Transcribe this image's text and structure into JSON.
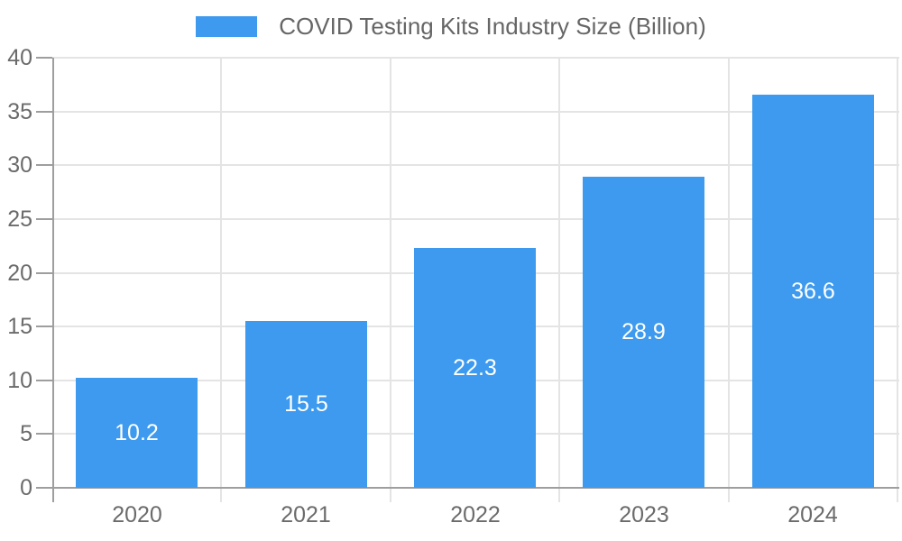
{
  "chart_data": {
    "type": "bar",
    "title": "COVID Testing Kits Industry Size (Billion)",
    "categories": [
      "2020",
      "2021",
      "2022",
      "2023",
      "2024"
    ],
    "series": [
      {
        "name": "COVID Testing Kits Industry Size (Billion)",
        "values": [
          10.2,
          15.5,
          22.3,
          28.9,
          36.6
        ]
      }
    ],
    "value_labels": [
      "10.2",
      "15.5",
      "22.3",
      "28.9",
      "36.6"
    ],
    "xlabel": "",
    "ylabel": "",
    "ylim": [
      0,
      40
    ],
    "y_ticks": [
      0,
      5,
      10,
      15,
      20,
      25,
      30,
      35,
      40
    ],
    "grid": "horizontal-and-vertical",
    "legend_position": "top-center",
    "value_label_position": "inside-center"
  },
  "legend": {
    "label": "COVID Testing Kits Industry Size (Billion)"
  },
  "colors": {
    "bar": "#3D9AEE",
    "axis": "#9E9E9E",
    "gridline": "#E4E4E4",
    "tick": "#B9B9B9",
    "axis_label_text": "#6B6B6B",
    "value_label_text": "#FFFFFF",
    "legend_text": "#666666",
    "background": "#FFFFFF"
  }
}
